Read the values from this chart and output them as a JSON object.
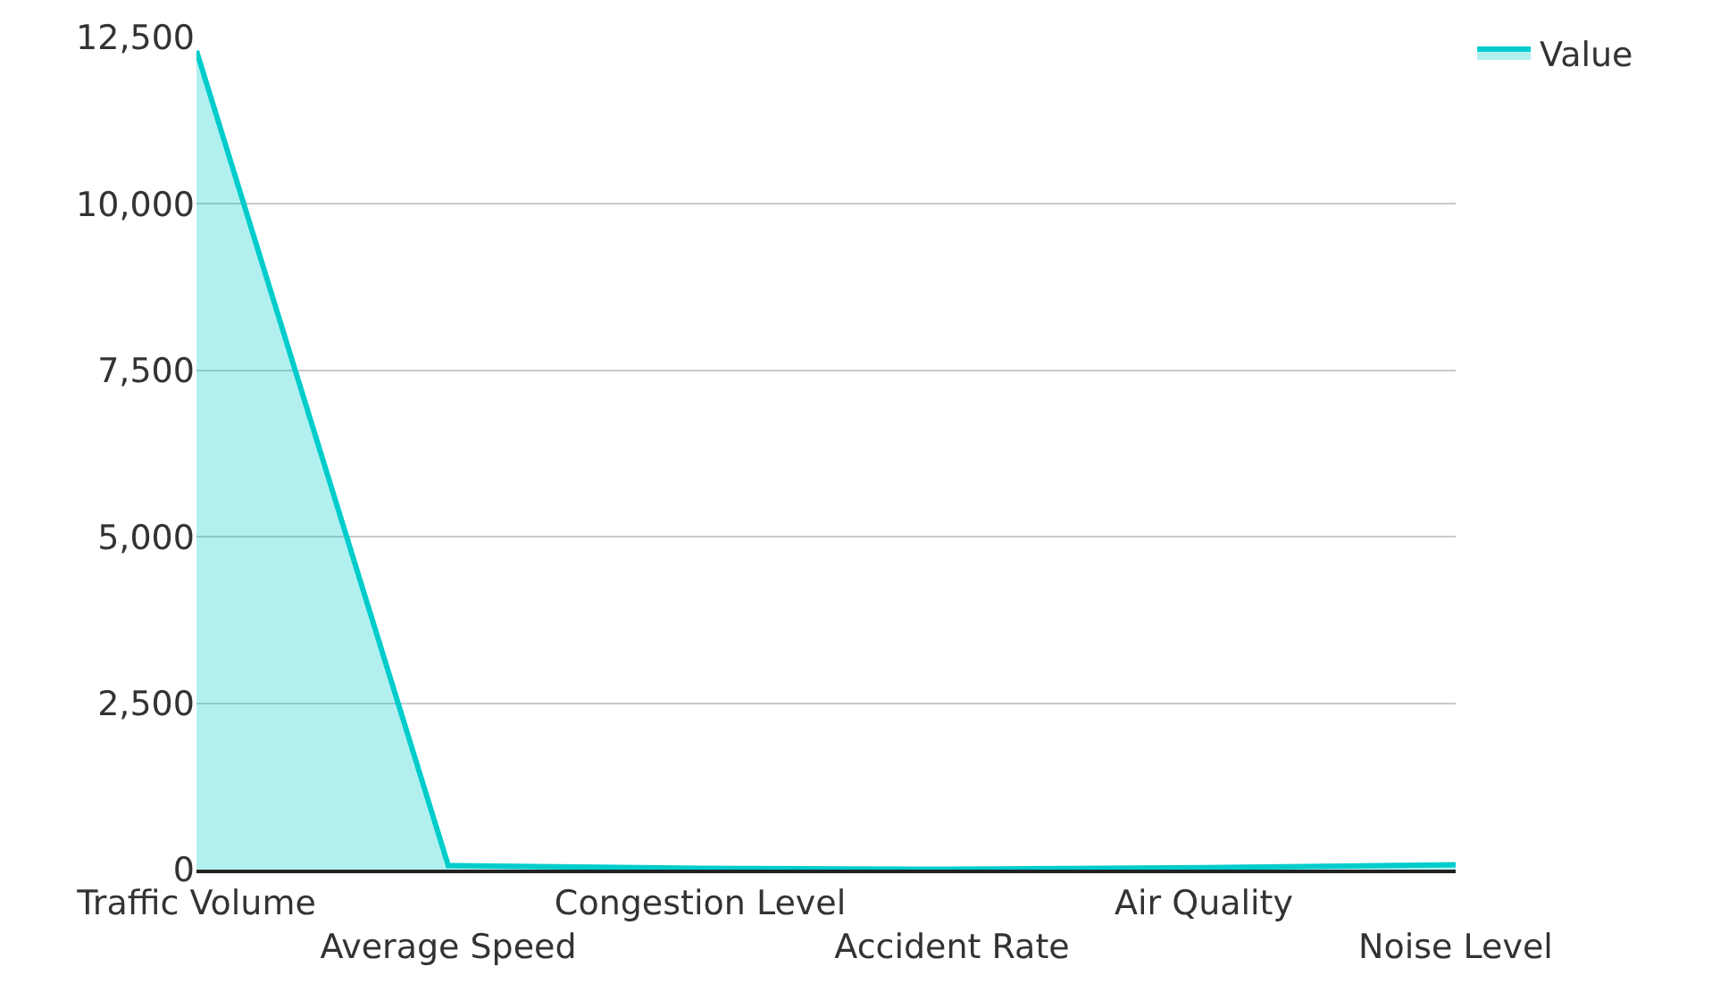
{
  "chart_data": {
    "type": "area",
    "categories": [
      "Traffic Volume",
      "Average Speed",
      "Congestion Level",
      "Accident Rate",
      "Air Quality",
      "Noise Level"
    ],
    "series": [
      {
        "name": "Value",
        "color": "#00cccc",
        "values": [
          12300,
          60,
          20,
          5,
          30,
          75
        ]
      }
    ],
    "ylim": [
      0,
      12500
    ],
    "yticks": [
      0,
      {
        "value": 2500,
        "label": "2,500"
      },
      {
        "value": 5000,
        "label": "5,000"
      },
      {
        "value": 7500,
        "label": "7,500"
      },
      {
        "value": 10000,
        "label": "10,000"
      },
      {
        "value": 12500,
        "label": "12,500"
      }
    ],
    "grid": "y",
    "legend": "top right"
  }
}
